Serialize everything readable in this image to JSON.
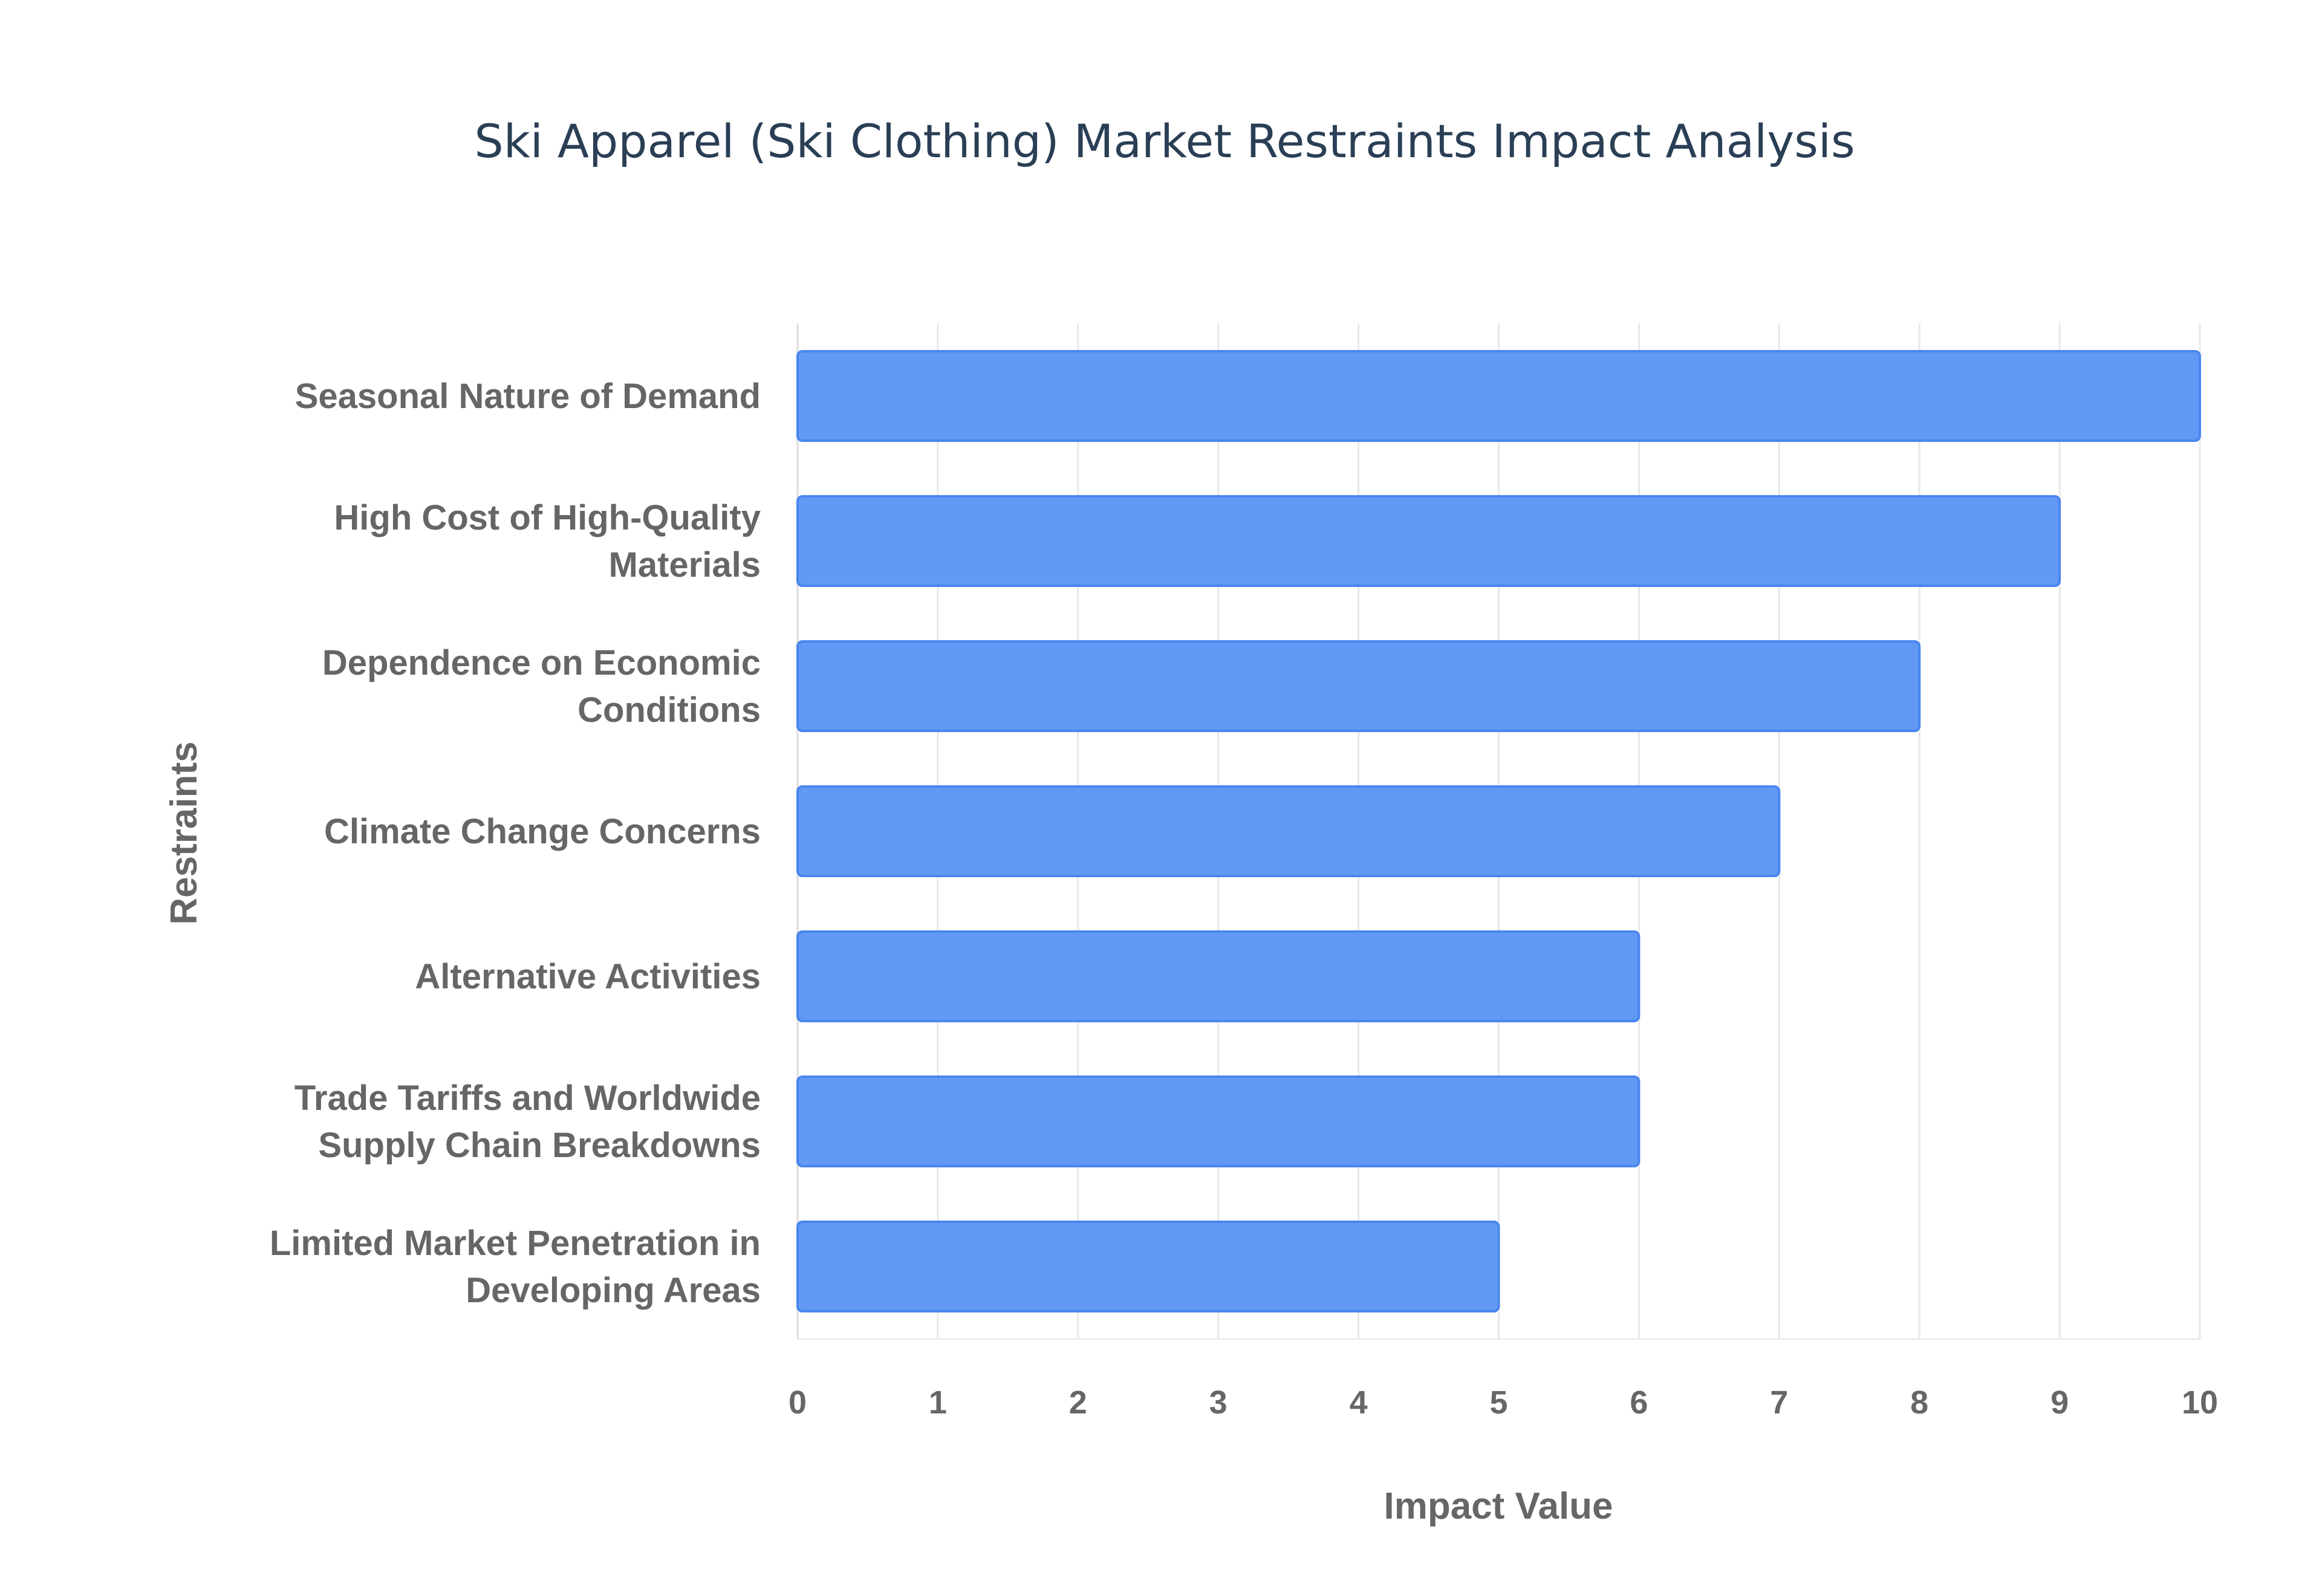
{
  "chart_data": {
    "type": "bar",
    "orientation": "horizontal",
    "title": "Ski Apparel (Ski Clothing) Market Restraints Impact Analysis",
    "xlabel": "Impact Value",
    "ylabel": "Restraints",
    "xlim": [
      0,
      10
    ],
    "xticks": [
      "0",
      "1",
      "2",
      "3",
      "4",
      "5",
      "6",
      "7",
      "8",
      "9",
      "10"
    ],
    "grid": true,
    "categories": [
      [
        "Seasonal Nature of Demand"
      ],
      [
        "High Cost of High-Quality",
        "Materials"
      ],
      [
        "Dependence on Economic",
        "Conditions"
      ],
      [
        "Climate Change Concerns"
      ],
      [
        "Alternative Activities"
      ],
      [
        "Trade Tariffs and Worldwide",
        "Supply Chain Breakdowns"
      ],
      [
        "Limited Market Penetration in",
        "Developing Areas"
      ]
    ],
    "values": [
      10,
      9,
      8,
      7,
      6,
      6,
      5
    ],
    "colors": {
      "bar": "#6299f5",
      "bar_border": "#4a86ef",
      "grid": "#e8e8e8"
    }
  }
}
